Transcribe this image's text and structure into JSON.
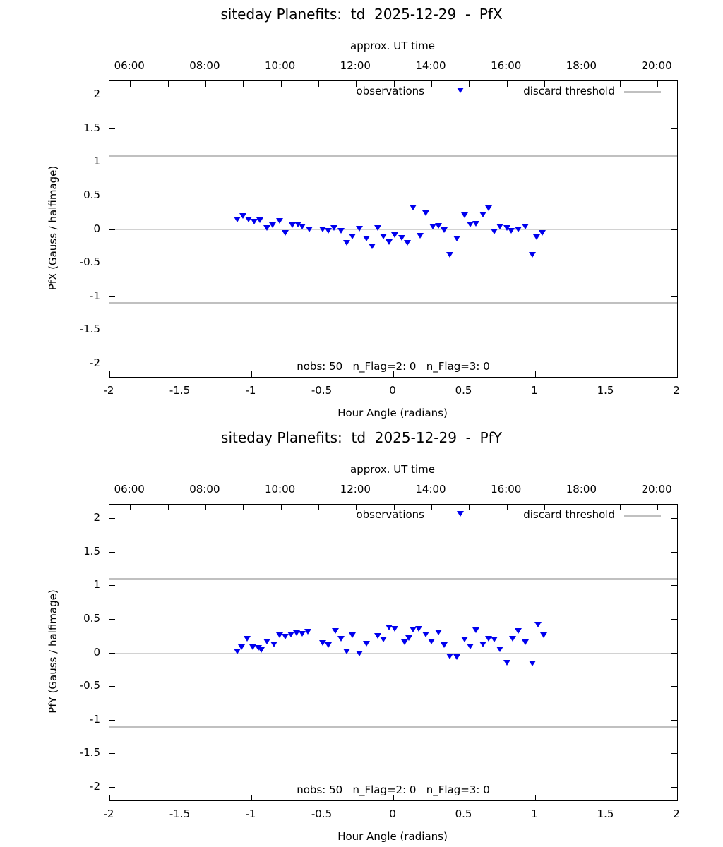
{
  "page": {
    "background": "#ffffff",
    "marker_color": "#0000ee",
    "threshold_color": "#c0c0c0",
    "zero_line_color": "#d2d2d2"
  },
  "chart_data": [
    {
      "type": "scatter",
      "title": "siteday Planefits:  td  2025-12-29  -  PfX",
      "top_axis_label": "approx. UT time",
      "top_axis_ticks": [
        "06:00",
        "08:00",
        "10:00",
        "12:00",
        "14:00",
        "16:00",
        "18:00",
        "20:00"
      ],
      "xlabel": "Hour Angle (radians)",
      "ylabel": "PfX (Gauss / halfimage)",
      "xlim": [
        -2,
        2
      ],
      "ylim": [
        -2.2,
        2.2
      ],
      "x_ticks": [
        -2,
        -1.5,
        -1,
        -0.5,
        0,
        0.5,
        1,
        1.5,
        2
      ],
      "y_ticks": [
        2,
        1.5,
        1,
        0.5,
        0,
        -0.5,
        -1,
        -1.5,
        -2
      ],
      "legend": [
        {
          "label": "observations",
          "marker": "triangle-down",
          "color": "#0000ee"
        },
        {
          "label": "discard threshold",
          "marker": "line",
          "color": "#c0c0c0"
        }
      ],
      "discard_threshold": 1.1,
      "zero_line": 0,
      "annotation": "nobs: 50   n_Flag=2: 0   n_Flag=3: 0",
      "nobs": 50,
      "points": [
        [
          -1.1,
          0.14
        ],
        [
          -1.06,
          0.19
        ],
        [
          -1.02,
          0.14
        ],
        [
          -0.98,
          0.11
        ],
        [
          -0.94,
          0.13
        ],
        [
          -0.89,
          0.02
        ],
        [
          -0.85,
          0.06
        ],
        [
          -0.8,
          0.12
        ],
        [
          -0.76,
          -0.06
        ],
        [
          -0.71,
          0.06
        ],
        [
          -0.67,
          0.07
        ],
        [
          -0.64,
          0.04
        ],
        [
          -0.59,
          -0.01
        ],
        [
          -0.5,
          -0.01
        ],
        [
          -0.46,
          -0.03
        ],
        [
          -0.42,
          0.02
        ],
        [
          -0.37,
          -0.03
        ],
        [
          -0.33,
          -0.2
        ],
        [
          -0.29,
          -0.11
        ],
        [
          -0.24,
          0.01
        ],
        [
          -0.19,
          -0.14
        ],
        [
          -0.15,
          -0.26
        ],
        [
          -0.11,
          0.02
        ],
        [
          -0.07,
          -0.11
        ],
        [
          -0.03,
          -0.19
        ],
        [
          0.01,
          -0.09
        ],
        [
          0.06,
          -0.13
        ],
        [
          0.1,
          -0.2
        ],
        [
          0.14,
          0.32
        ],
        [
          0.19,
          -0.1
        ],
        [
          0.23,
          0.24
        ],
        [
          0.28,
          0.04
        ],
        [
          0.32,
          0.05
        ],
        [
          0.36,
          -0.02
        ],
        [
          0.4,
          -0.38
        ],
        [
          0.45,
          -0.14
        ],
        [
          0.5,
          0.2
        ],
        [
          0.54,
          0.07
        ],
        [
          0.58,
          0.08
        ],
        [
          0.63,
          0.22
        ],
        [
          0.67,
          0.31
        ],
        [
          0.71,
          -0.04
        ],
        [
          0.75,
          0.04
        ],
        [
          0.8,
          0.02
        ],
        [
          0.83,
          -0.03
        ],
        [
          0.88,
          -0.01
        ],
        [
          0.93,
          0.04
        ],
        [
          0.98,
          -0.38
        ],
        [
          1.01,
          -0.12
        ],
        [
          1.05,
          -0.06
        ]
      ]
    },
    {
      "type": "scatter",
      "title": "siteday Planefits:  td  2025-12-29  -  PfY",
      "top_axis_label": "approx. UT time",
      "top_axis_ticks": [
        "06:00",
        "08:00",
        "10:00",
        "12:00",
        "14:00",
        "16:00",
        "18:00",
        "20:00"
      ],
      "xlabel": "Hour Angle (radians)",
      "ylabel": "PfY (Gauss / halfimage)",
      "xlim": [
        -2,
        2
      ],
      "ylim": [
        -2.2,
        2.2
      ],
      "x_ticks": [
        -2,
        -1.5,
        -1,
        -0.5,
        0,
        0.5,
        1,
        1.5,
        2
      ],
      "y_ticks": [
        2,
        1.5,
        1,
        0.5,
        0,
        -0.5,
        -1,
        -1.5,
        -2
      ],
      "legend": [
        {
          "label": "observations",
          "marker": "triangle-down",
          "color": "#0000ee"
        },
        {
          "label": "discard threshold",
          "marker": "line",
          "color": "#c0c0c0"
        }
      ],
      "discard_threshold": 1.1,
      "zero_line": 0,
      "annotation": "nobs: 50   n_Flag=2: 0   n_Flag=3: 0",
      "nobs": 50,
      "points": [
        [
          -1.1,
          0.02
        ],
        [
          -1.07,
          0.08
        ],
        [
          -1.03,
          0.2
        ],
        [
          -0.99,
          0.08
        ],
        [
          -0.95,
          0.07
        ],
        [
          -0.93,
          0.04
        ],
        [
          -0.89,
          0.16
        ],
        [
          -0.84,
          0.12
        ],
        [
          -0.8,
          0.26
        ],
        [
          -0.76,
          0.24
        ],
        [
          -0.72,
          0.27
        ],
        [
          -0.68,
          0.29
        ],
        [
          -0.64,
          0.28
        ],
        [
          -0.6,
          0.31
        ],
        [
          -0.5,
          0.14
        ],
        [
          -0.46,
          0.11
        ],
        [
          -0.41,
          0.32
        ],
        [
          -0.37,
          0.2
        ],
        [
          -0.33,
          0.02
        ],
        [
          -0.29,
          0.26
        ],
        [
          -0.24,
          -0.02
        ],
        [
          -0.19,
          0.13
        ],
        [
          -0.11,
          0.25
        ],
        [
          -0.07,
          0.19
        ],
        [
          -0.03,
          0.37
        ],
        [
          0.01,
          0.35
        ],
        [
          0.08,
          0.15
        ],
        [
          0.11,
          0.22
        ],
        [
          0.14,
          0.34
        ],
        [
          0.18,
          0.35
        ],
        [
          0.23,
          0.27
        ],
        [
          0.27,
          0.16
        ],
        [
          0.32,
          0.3
        ],
        [
          0.36,
          0.11
        ],
        [
          0.4,
          -0.06
        ],
        [
          0.45,
          -0.07
        ],
        [
          0.5,
          0.19
        ],
        [
          0.54,
          0.09
        ],
        [
          0.58,
          0.33
        ],
        [
          0.63,
          0.12
        ],
        [
          0.67,
          0.2
        ],
        [
          0.71,
          0.19
        ],
        [
          0.75,
          0.05
        ],
        [
          0.8,
          -0.15
        ],
        [
          0.84,
          0.21
        ],
        [
          0.88,
          0.32
        ],
        [
          0.93,
          0.15
        ],
        [
          0.98,
          -0.16
        ],
        [
          1.02,
          0.42
        ],
        [
          1.06,
          0.26
        ]
      ]
    }
  ]
}
